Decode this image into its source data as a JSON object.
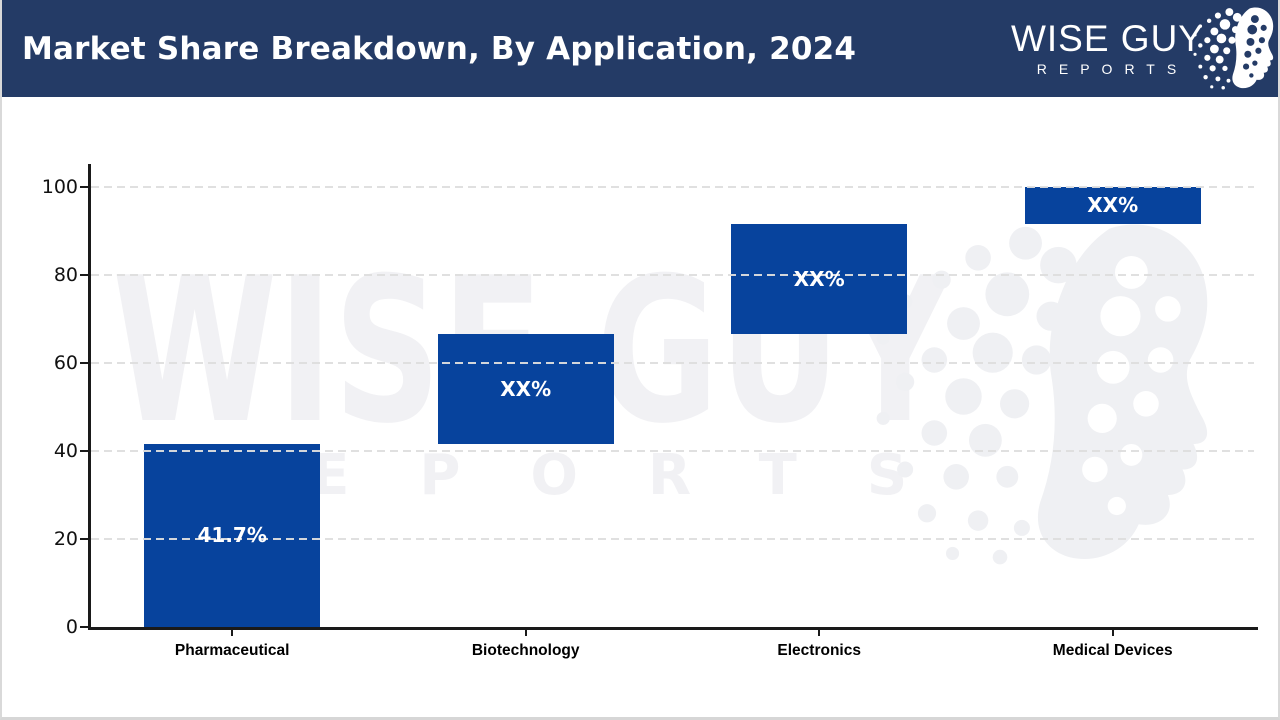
{
  "header": {
    "title": "Market Share Breakdown, By Application, 2024",
    "logo": {
      "line1": "WISE GUY",
      "line2": "REPORTS"
    }
  },
  "watermark": {
    "line1": "WISE GUY",
    "line2": "REPORTS"
  },
  "chart_data": {
    "type": "bar",
    "subtype": "waterfall-floating-bars",
    "title": "Market Share Breakdown, By Application, 2024",
    "categories": [
      "Pharmaceutical",
      "Biotechnology",
      "Electronics",
      "Medical Devices"
    ],
    "segments": [
      {
        "category": "Pharmaceutical",
        "start": 0,
        "end": 41.7,
        "label": "41.7%"
      },
      {
        "category": "Biotechnology",
        "start": 41.7,
        "end": 66.7,
        "label": "XX%"
      },
      {
        "category": "Electronics",
        "start": 66.7,
        "end": 91.7,
        "label": "XX%"
      },
      {
        "category": "Medical Devices",
        "start": 91.7,
        "end": 100,
        "label": "XX%"
      }
    ],
    "yticks": [
      0,
      20,
      40,
      60,
      80,
      100
    ],
    "ylim": [
      0,
      105
    ],
    "xlabel": "",
    "ylabel": "",
    "grid": {
      "axis": "y",
      "style": "dashed",
      "above_bars": true
    },
    "legend_position": "none",
    "colors": {
      "bar": "#07439d",
      "bar_label": "#ffffff",
      "grid": "#dedede",
      "axis": "#1a1a1a",
      "header_bg": "#243b66",
      "watermark": "#f1f1f4"
    }
  }
}
